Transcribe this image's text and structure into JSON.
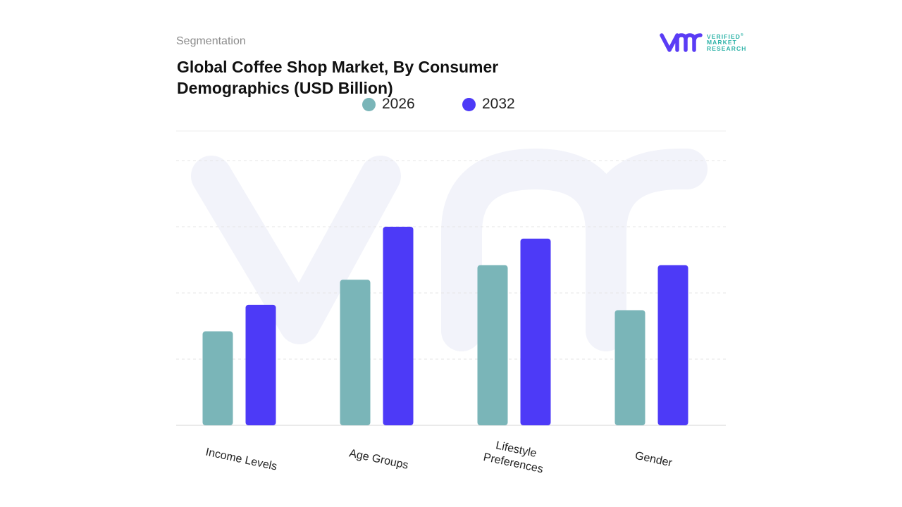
{
  "header": {
    "segment_label": "Segmentation",
    "title": "Global Coffee Shop Market, By Consumer Demographics (USD Billion)"
  },
  "logo": {
    "line1": "VERIFIED",
    "registered": "®",
    "line2": "MARKET",
    "line3": "RESEARCH",
    "primary_color": "#5a3cf5",
    "accent_color": "#2eb3a8"
  },
  "chart_data": {
    "type": "bar",
    "title": "Global Coffee Shop Market, By Consumer Demographics (USD Billion)",
    "categories": [
      "Income Levels",
      "Age Groups",
      "Lifestyle Preferences",
      "Gender"
    ],
    "series": [
      {
        "name": "2026",
        "color": "#7ab5b8",
        "values": [
          35.5,
          55,
          60.5,
          43.5
        ]
      },
      {
        "name": "2032",
        "color": "#4d3af7",
        "values": [
          45.5,
          75,
          70.5,
          60.5
        ]
      }
    ],
    "ylim": [
      0,
      100
    ],
    "grid": true,
    "legend_position": "top-center",
    "xlabel": "",
    "ylabel": ""
  }
}
